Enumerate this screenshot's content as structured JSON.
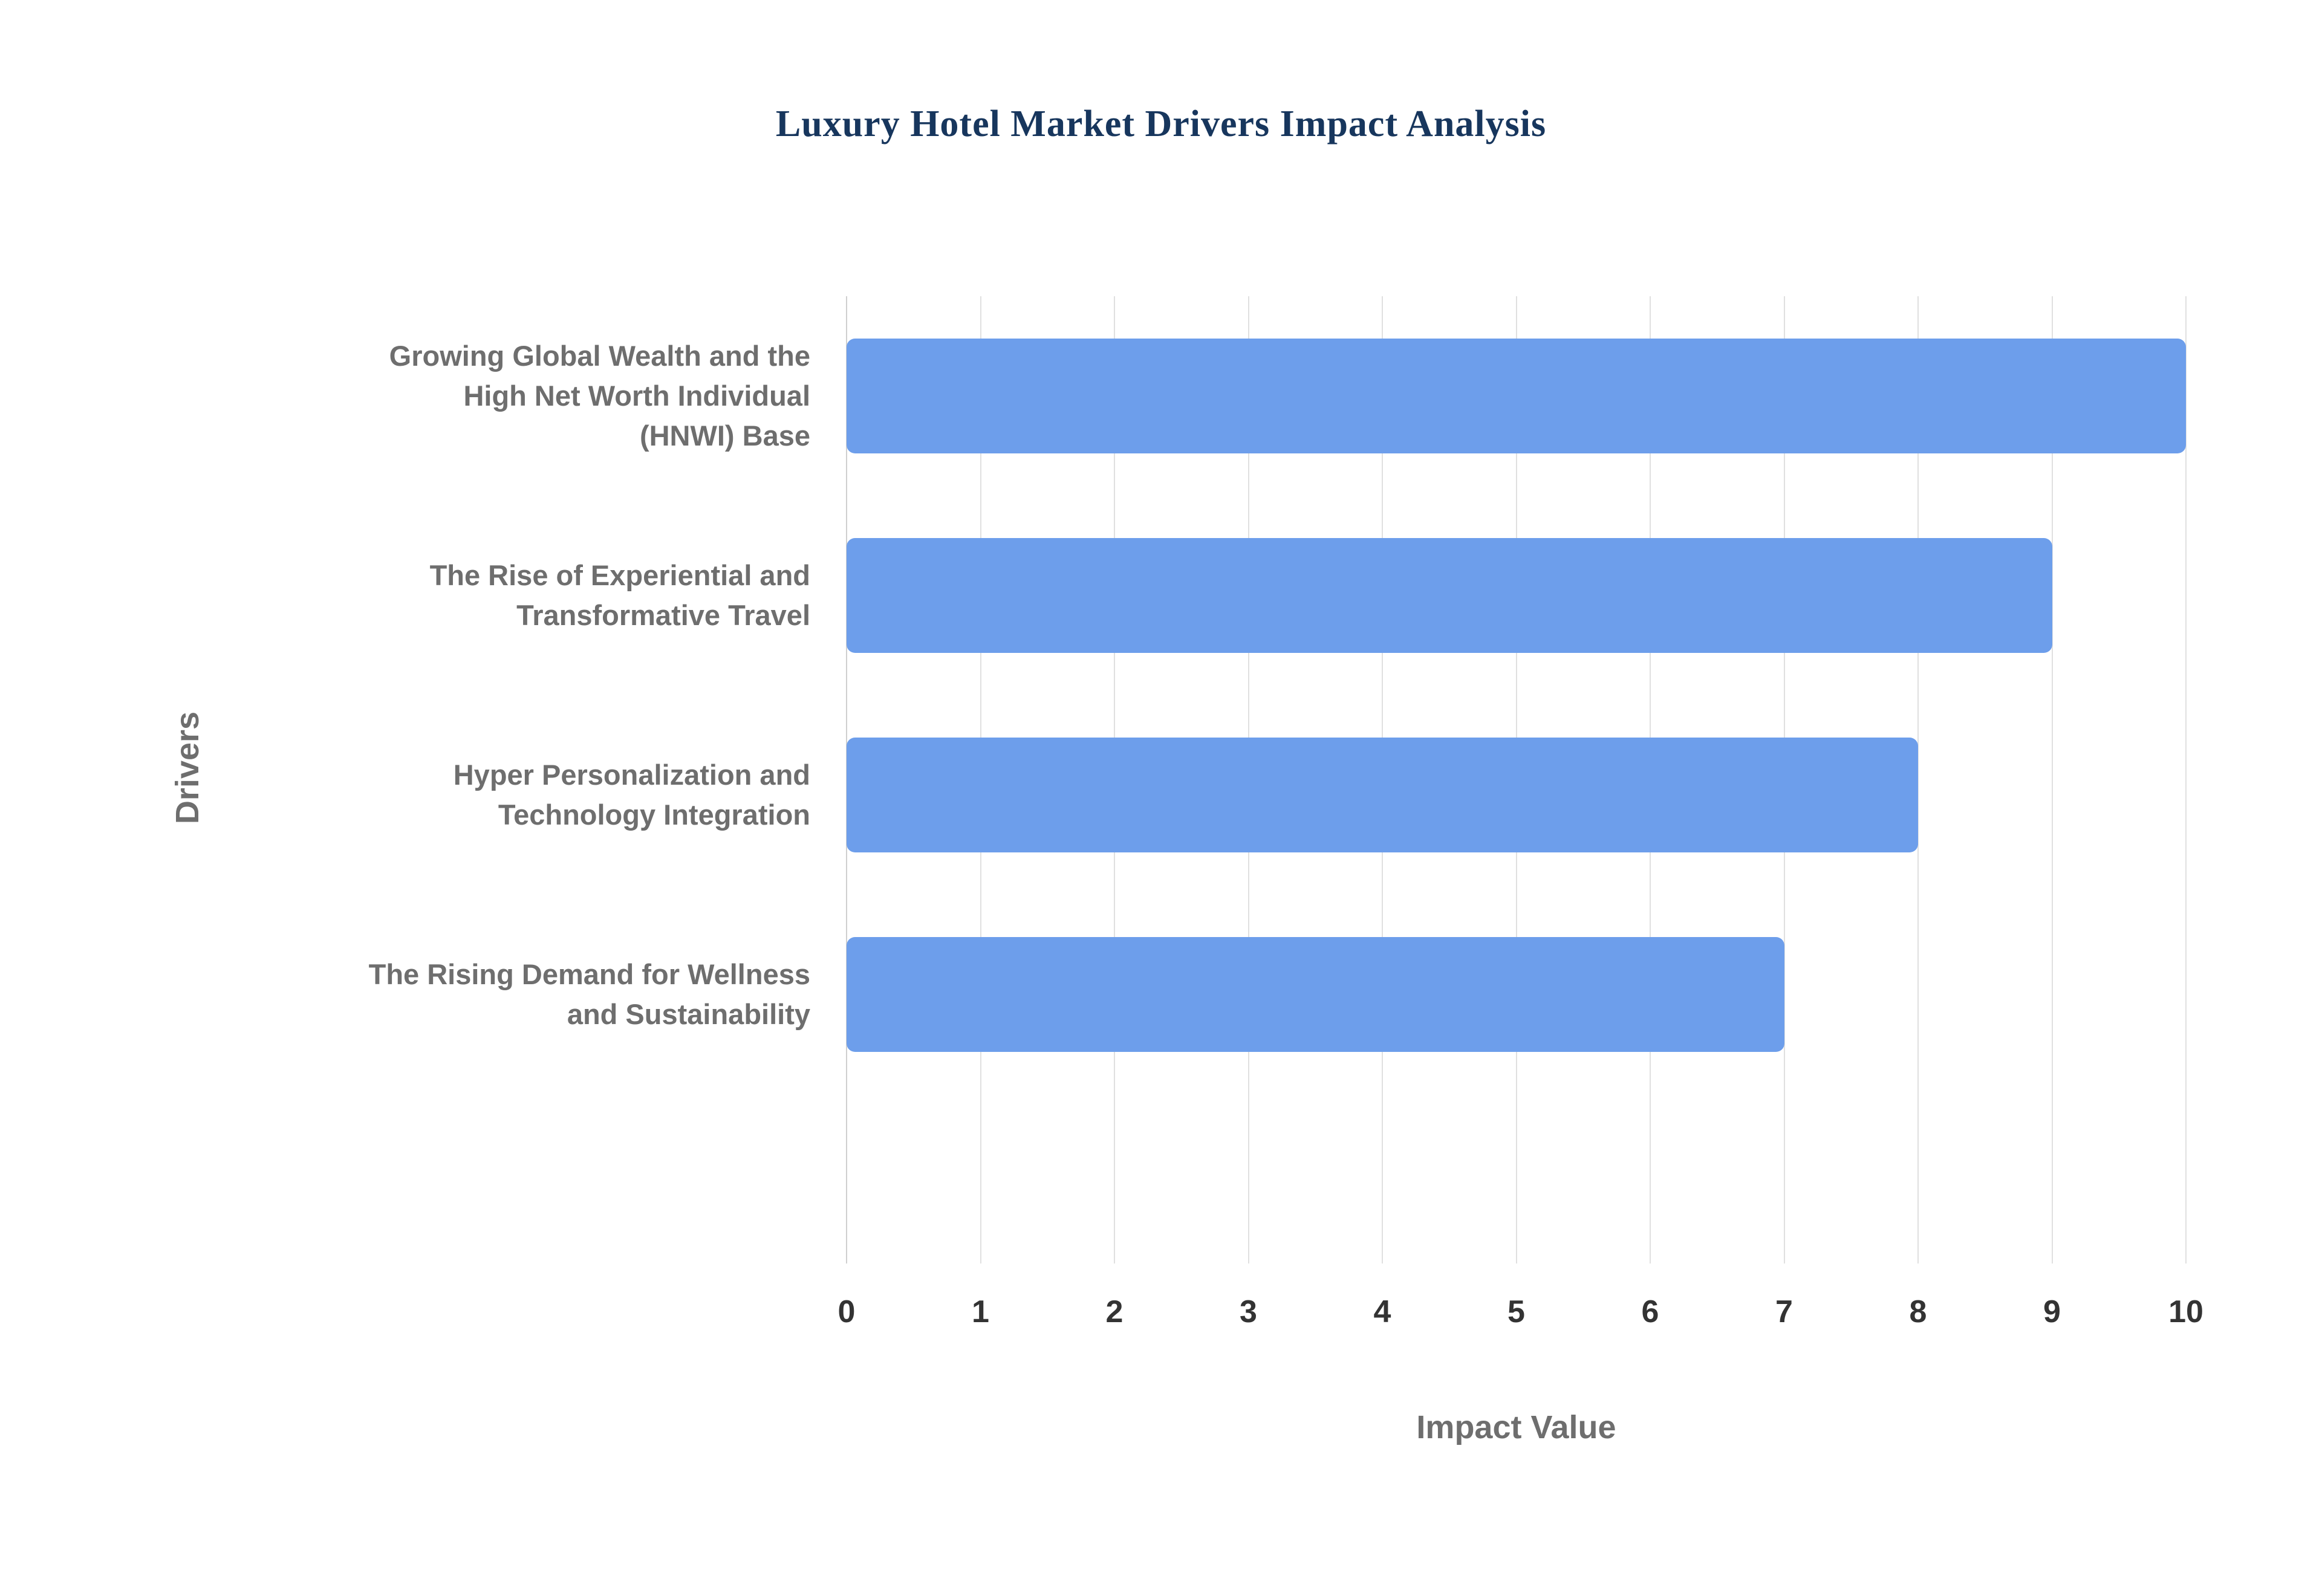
{
  "chart_data": {
    "type": "bar",
    "orientation": "horizontal",
    "title": "Luxury Hotel Market Drivers Impact Analysis",
    "xlabel": "Impact Value",
    "ylabel": "Drivers",
    "categories": [
      "Growing Global Wealth and the\nHigh Net Worth Individual\n(HNWI) Base",
      "The Rise of Experiential and\nTransformative Travel",
      "Hyper Personalization and\nTechnology Integration",
      "The Rising Demand for Wellness\nand Sustainability"
    ],
    "values": [
      10,
      9,
      8,
      7
    ],
    "xlim": [
      0,
      10
    ],
    "xticks": [
      0,
      1,
      2,
      3,
      4,
      5,
      6,
      7,
      8,
      9,
      10
    ],
    "grid": true,
    "legend": "none"
  },
  "colors": {
    "bar": "#6d9eeb",
    "title": "#17365d",
    "axis_title": "#6e6e6e",
    "category_label": "#6e6e6e",
    "tick_label": "#333333",
    "gridline": "#e0e0e0",
    "background": "#ffffff"
  }
}
